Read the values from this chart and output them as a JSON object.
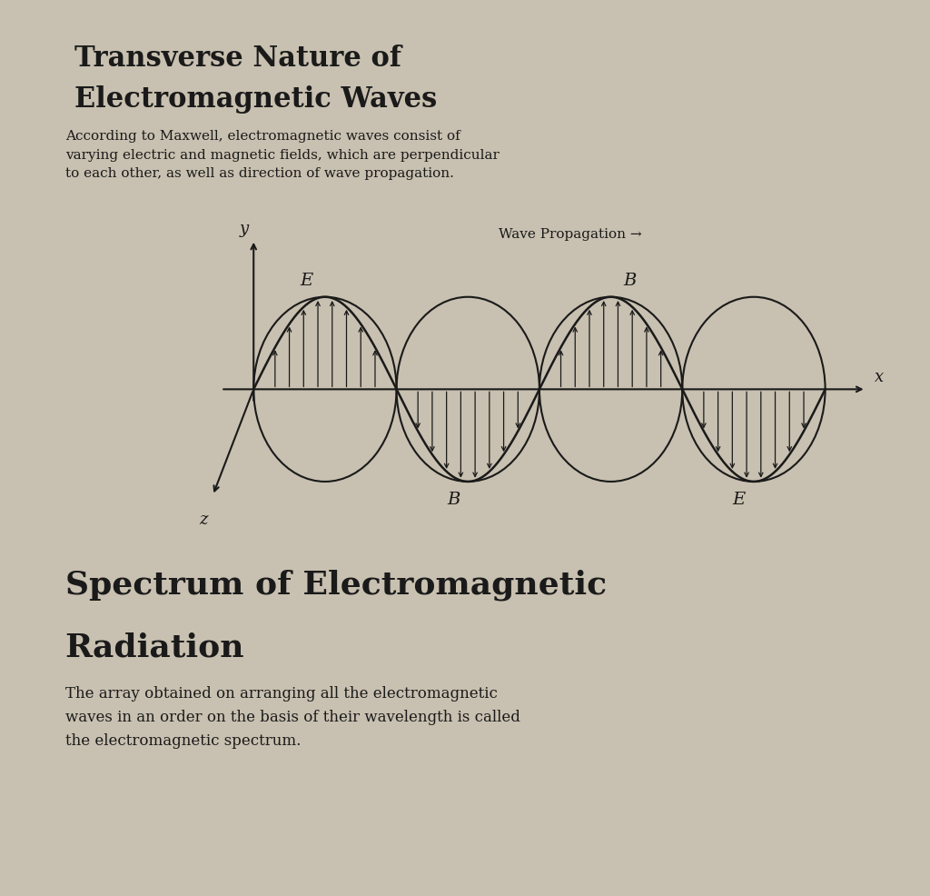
{
  "title1": "Transverse Nature of",
  "title2": "Electromagnetic Waves",
  "body_text1": "According to Maxwell, electromagnetic waves consist of",
  "body_text2": "varying electric and magnetic fields, which are perpendicular",
  "body_text3": "to each other, as well as direction of wave propagation.",
  "wave_prop_label": "Wave Propagation →",
  "label_E_top": "E",
  "label_B_top": "B",
  "label_B_bottom": "B",
  "label_E_bottom": "E",
  "axis_x": "x",
  "axis_y": "y",
  "axis_z": "z",
  "footer_title1": "Spectrum of Electromagnetic",
  "footer_title2": "Radiation",
  "footer_text1": "The array obtained on arranging all the electromagnetic",
  "footer_text2": "waves in an order on the basis of their wavelength is called",
  "footer_text3": "the electromagnetic spectrum.",
  "bg_color": "#c8c0b0",
  "line_color": "#1a1a1a",
  "text_color": "#1a1a1a"
}
